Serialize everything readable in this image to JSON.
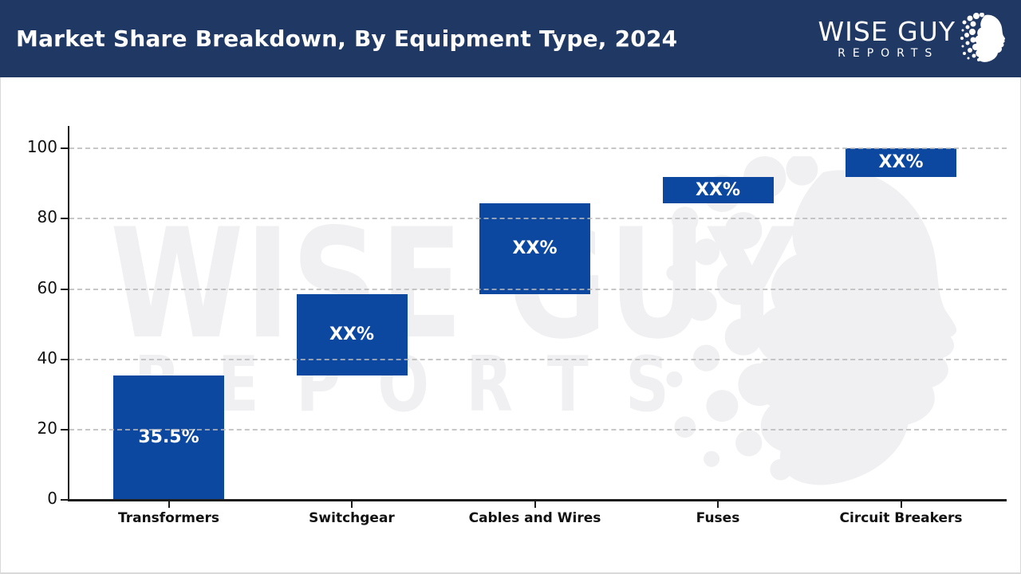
{
  "header": {
    "title": "Market Share Breakdown, By Equipment Type, 2024",
    "logo": {
      "line1": "WISE GUY",
      "line2": "REPORTS"
    }
  },
  "watermark": {
    "line1": "WISE GUY",
    "line2": "REPORTS"
  },
  "chart_data": {
    "type": "bar",
    "subtype": "waterfall",
    "title": "Market Share Breakdown, By Equipment Type, 2024",
    "categories": [
      "Transformers",
      "Switchgear",
      "Cables and Wires",
      "Fuses",
      "Circuit Breakers"
    ],
    "bars": [
      {
        "category": "Transformers",
        "start": 0,
        "end": 35.5,
        "label": "35.5%"
      },
      {
        "category": "Switchgear",
        "start": 35.5,
        "end": 58.5,
        "label": "XX%"
      },
      {
        "category": "Cables and Wires",
        "start": 58.5,
        "end": 84.5,
        "label": "XX%"
      },
      {
        "category": "Fuses",
        "start": 84.5,
        "end": 92,
        "label": "XX%"
      },
      {
        "category": "Circuit Breakers",
        "start": 92,
        "end": 100,
        "label": "XX%"
      }
    ],
    "xlabel": "",
    "ylabel": "",
    "ylim": [
      0,
      100
    ],
    "yticks": [
      0,
      20,
      40,
      60,
      80,
      100
    ],
    "grid": "horizontal-dashed",
    "legend": "none"
  },
  "colors": {
    "header_bg": "#203864",
    "bar": "#0c48a0",
    "bar_label": "#ffffff",
    "grid": "#b9b9b9",
    "axis": "#1c1c1c",
    "watermark": "#f0f0f2",
    "frame_border": "#d9d9d9"
  }
}
